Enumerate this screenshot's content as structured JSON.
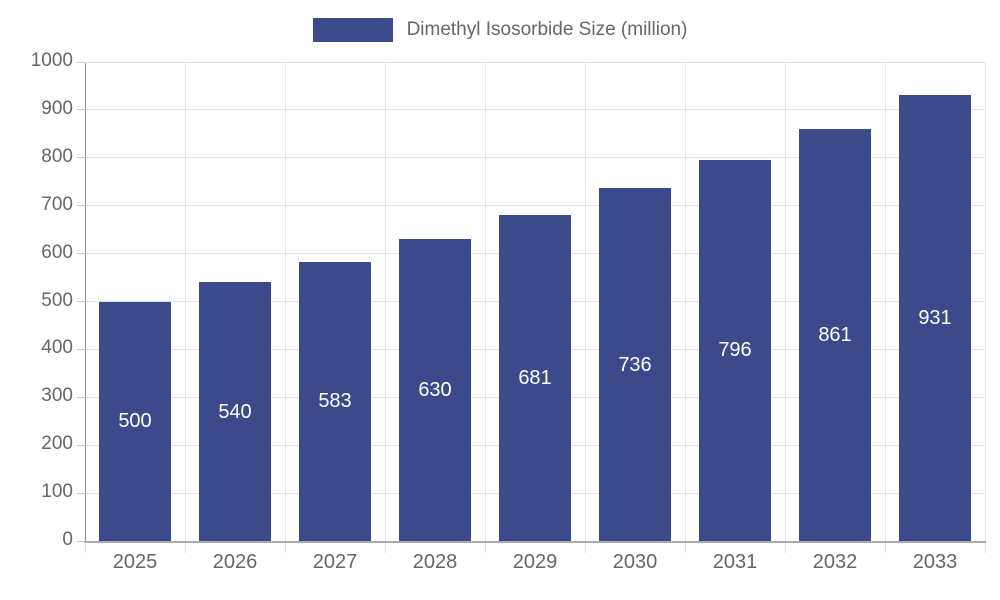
{
  "legend": {
    "label": "Dimethyl Isosorbide Size (million)"
  },
  "colors": {
    "bar": "#3A4A8A",
    "bar_label": "#ffffff",
    "axis_text": "#666666",
    "grid": "#e2e2e2"
  },
  "chart_data": {
    "type": "bar",
    "title": "",
    "legend_entries": [
      "Dimethyl Isosorbide Size (million)"
    ],
    "categories": [
      "2025",
      "2026",
      "2027",
      "2028",
      "2029",
      "2030",
      "2031",
      "2032",
      "2033"
    ],
    "series": [
      {
        "name": "Dimethyl Isosorbide Size (million)",
        "values": [
          500,
          540,
          583,
          630,
          681,
          736,
          796,
          861,
          931
        ]
      }
    ],
    "xlabel": "",
    "ylabel": "",
    "ylim": [
      0,
      1000
    ],
    "ytick_step": 100,
    "ytick_labels": [
      "0",
      "100",
      "200",
      "300",
      "400",
      "500",
      "600",
      "700",
      "800",
      "900",
      "1000"
    ],
    "grid": true,
    "legend_position": "top-center",
    "value_labels": "inside-center"
  }
}
